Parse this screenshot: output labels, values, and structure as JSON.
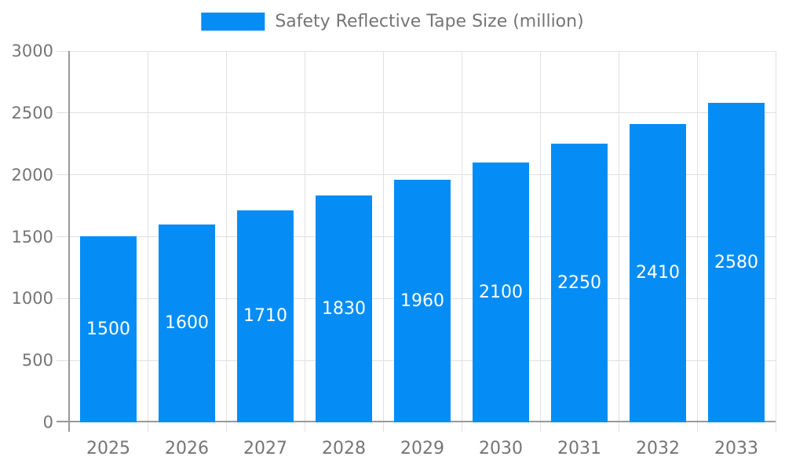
{
  "legend": {
    "label": "Safety Reflective Tape Size (million)"
  },
  "colors": {
    "bar": "#058DF5",
    "axis_line": "#999999",
    "grid_line": "#E0E0E0",
    "tick_text": "#757575",
    "value_label_text": "#FFFFFF",
    "background": "#FFFFFF"
  },
  "chart_data": {
    "type": "bar",
    "title": "Safety Reflective Tape Size (million)",
    "categories": [
      "2025",
      "2026",
      "2027",
      "2028",
      "2029",
      "2030",
      "2031",
      "2032",
      "2033"
    ],
    "values": [
      1500,
      1600,
      1710,
      1830,
      1960,
      2100,
      2250,
      2410,
      2580
    ],
    "series_name": "Safety Reflective Tape Size (million)",
    "xlabel": "",
    "ylabel": "",
    "ylim": [
      0,
      3000
    ],
    "ytick_step": 500,
    "ytick_labels": [
      "0",
      "500",
      "1000",
      "1500",
      "2000",
      "2500",
      "3000"
    ],
    "grid": true,
    "legend_position": "top-center",
    "value_labels": "inside-center"
  }
}
